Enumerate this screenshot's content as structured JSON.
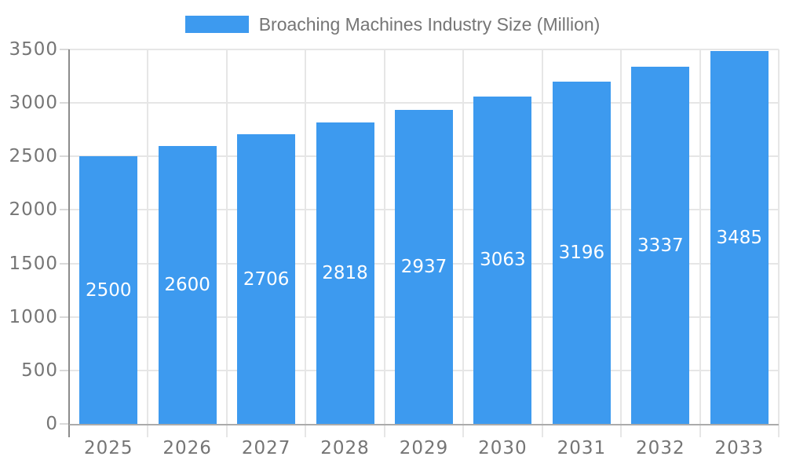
{
  "chart_data": {
    "type": "bar",
    "title": "Broaching Machines Industry Size (Million)",
    "categories": [
      "2025",
      "2026",
      "2027",
      "2028",
      "2029",
      "2030",
      "2031",
      "2032",
      "2033"
    ],
    "values": [
      2500,
      2600,
      2706,
      2818,
      2937,
      3063,
      3196,
      3337,
      3485
    ],
    "ylim": [
      0,
      3500
    ],
    "yticks": [
      0,
      500,
      1000,
      1500,
      2000,
      2500,
      3000,
      3500
    ],
    "xlabel": "",
    "ylabel": "",
    "grid": true,
    "legend_position": "top",
    "colors": {
      "bar": "#3D9AEF",
      "bar_label": "#FFFFFF",
      "axis_text": "#757575",
      "title_text": "#757575",
      "gridline": "#E6E6E6",
      "tick": "#D9D9D9",
      "y_axis_line": "#8C8C8C",
      "x_axis_line": "#ABABAB",
      "background": "#FFFFFF"
    }
  }
}
